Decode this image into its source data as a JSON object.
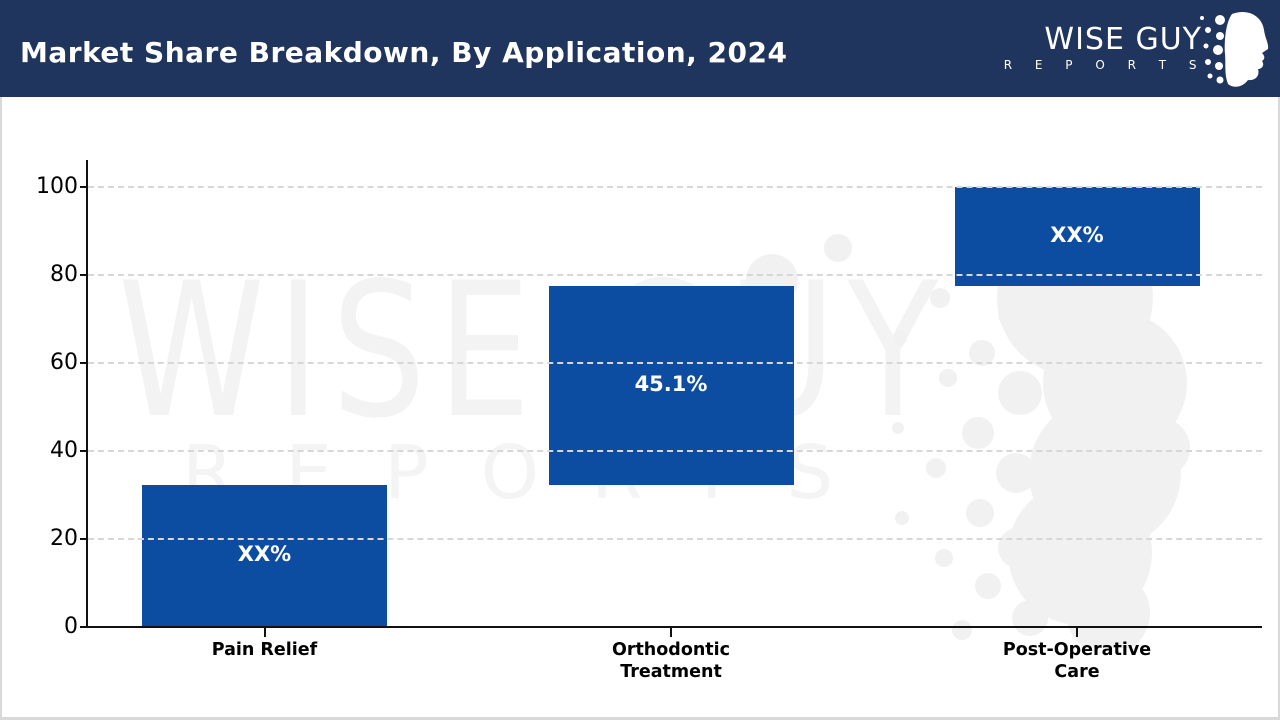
{
  "header": {
    "title": "Market Share Breakdown, By Application, 2024",
    "logo": {
      "line1": "WISE GUY",
      "line2": "R E P O R T S"
    }
  },
  "watermark": {
    "line1": "WISE GUY",
    "line2": "REPORTS"
  },
  "chart_data": {
    "type": "bar",
    "variant": "floating-segment-waterfall",
    "title": "Market Share Breakdown, By Application, 2024",
    "categories": [
      "Pain Relief",
      "Orthodontic\nTreatment",
      "Post-Operative\nCare"
    ],
    "segments": [
      {
        "category": "Pain Relief",
        "start": 0,
        "end": 32.3,
        "label": "XX%"
      },
      {
        "category": "Orthodontic Treatment",
        "start": 32.3,
        "end": 77.4,
        "label": "45.1%"
      },
      {
        "category": "Post-Operative Care",
        "start": 77.4,
        "end": 100,
        "label": "XX%"
      }
    ],
    "yticks": [
      0,
      20,
      40,
      60,
      80,
      100
    ],
    "ylim": [
      0,
      105.5
    ],
    "xlabel": "",
    "ylabel": "",
    "grid": "horizontal-dashed",
    "legend": "none",
    "colors": {
      "bar": "#0C4DA2",
      "bar_label": "#ffffff",
      "header_bg": "#1F355E",
      "axis": "#111111",
      "gridline": "#d7d7d7",
      "watermark": "#f3f3f3"
    }
  }
}
